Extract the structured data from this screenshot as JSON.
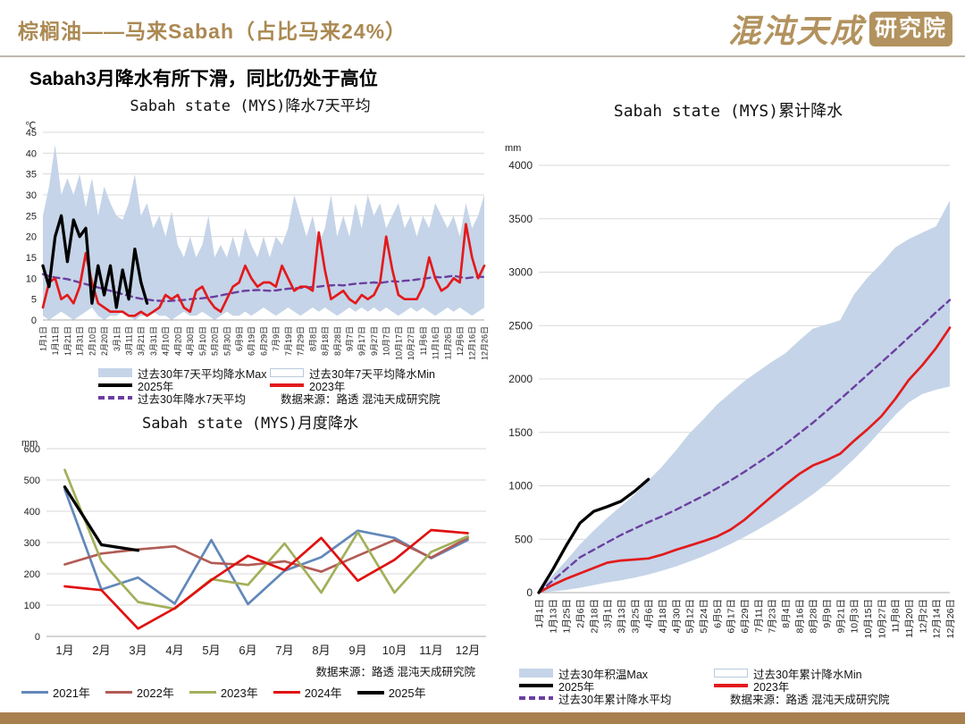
{
  "header": {
    "title": "棕榈油——马来Sabah（占比马来24%）",
    "logo_script": "混沌天成",
    "logo_seal": "研究院"
  },
  "subtitle": "Sabah3月降水有所下滑，同比仍处于高位",
  "colors": {
    "accent_gold": "#ab8952",
    "footer_bar": "#a87f4f",
    "band_fill": "#c5d4e8",
    "band_min_border": "#b9cbdf",
    "grid": "#d9d9d9",
    "black_2025": "#000000",
    "red_2023": "#e31a1c",
    "purple_avg": "#6b3fa0",
    "blue_2021": "#6288ba",
    "maroon_2022": "#b25b55",
    "olive_2023": "#a2b05a",
    "red_2024": "#e01111"
  },
  "chart_data": [
    {
      "type": "area",
      "title": "Sabah state (MYS)降水7天平均",
      "unit": "℃",
      "ylim": [
        0,
        45
      ],
      "ytick_step": 5,
      "x_count": 73,
      "points_per_tick": 2,
      "x_tick_labels": [
        "1月1日",
        "1月11日",
        "1月21日",
        "1月31日",
        "2月10日",
        "2月20日",
        "3月1日",
        "3月11日",
        "3月21日",
        "3月31日",
        "4月10日",
        "4月20日",
        "4月30日",
        "5月10日",
        "5月20日",
        "5月30日",
        "6月9日",
        "6月19日",
        "6月29日",
        "7月9日",
        "7月19日",
        "7月29日",
        "8月8日",
        "8月18日",
        "8月28日",
        "9月7日",
        "9月17日",
        "9月27日",
        "10月7日",
        "10月17日",
        "10月27日",
        "11月6日",
        "11月16日",
        "11月26日",
        "12月6日",
        "12月16日",
        "12月26日"
      ],
      "band": {
        "name_max": "过去30年7天平均降水Max",
        "name_min": "过去30年7天平均降水Min",
        "upper": [
          25,
          32,
          42,
          30,
          34,
          30,
          35,
          27,
          34,
          25,
          32,
          28,
          25,
          24,
          28,
          35,
          25,
          28,
          22,
          25,
          20,
          26,
          18,
          15,
          20,
          15,
          18,
          25,
          15,
          18,
          15,
          20,
          15,
          22,
          18,
          15,
          20,
          15,
          20,
          18,
          22,
          30,
          25,
          20,
          25,
          18,
          22,
          30,
          20,
          25,
          20,
          28,
          22,
          30,
          25,
          28,
          22,
          25,
          28,
          22,
          25,
          20,
          25,
          22,
          28,
          25,
          22,
          25,
          20,
          28,
          22,
          25,
          30
        ],
        "lower": [
          1,
          0,
          1,
          2,
          1,
          0,
          1,
          2,
          3,
          1,
          0,
          1,
          1,
          2,
          1,
          0,
          1,
          1,
          2,
          1,
          1,
          0,
          1,
          2,
          1,
          1,
          2,
          1,
          0,
          1,
          2,
          1,
          1,
          2,
          1,
          2,
          3,
          2,
          1,
          2,
          3,
          2,
          1,
          2,
          3,
          2,
          3,
          2,
          1,
          2,
          3,
          2,
          3,
          2,
          3,
          2,
          3,
          2,
          1,
          2,
          3,
          2,
          3,
          2,
          1,
          2,
          3,
          2,
          3,
          2,
          1,
          2,
          3
        ]
      },
      "series": [
        {
          "name": "2025年",
          "color_key": "black_2025",
          "values": [
            13,
            8,
            20,
            25,
            14,
            24,
            20,
            22,
            4,
            13,
            6,
            13,
            3,
            12,
            5,
            17,
            9,
            4
          ]
        },
        {
          "name": "2023年",
          "color_key": "red_2023",
          "values": [
            3,
            9,
            10,
            5,
            6,
            4,
            8,
            16,
            9,
            4,
            3,
            2,
            2,
            2,
            1,
            1,
            2,
            1,
            2,
            3,
            6,
            5,
            6,
            3,
            2,
            7,
            8,
            5,
            3,
            2,
            5,
            8,
            9,
            13,
            10,
            8,
            9,
            9,
            8,
            13,
            10,
            7,
            8,
            8,
            7,
            21,
            12,
            5,
            6,
            7,
            5,
            4,
            6,
            5,
            6,
            9,
            20,
            12,
            6,
            5,
            5,
            5,
            8,
            15,
            10,
            7,
            8,
            10,
            9,
            23,
            15,
            10,
            13
          ]
        },
        {
          "name": "过去30年降水7天平均",
          "color_key": "purple_avg",
          "dash": true,
          "values": [
            11,
            10.5,
            10.2,
            10,
            9.8,
            9.4,
            9,
            8.6,
            8.2,
            7.8,
            7.4,
            7,
            6.6,
            6.2,
            5.8,
            5.4,
            5.1,
            4.9,
            4.7,
            4.6,
            4.5,
            4.6,
            4.7,
            4.8,
            5,
            5.1,
            5.2,
            5.4,
            5.6,
            5.9,
            6.2,
            6.5,
            6.8,
            7,
            7.1,
            7.2,
            7.1,
            7,
            7.1,
            7.3,
            7.5,
            7.6,
            7.7,
            7.8,
            7.9,
            8,
            8.2,
            8.3,
            8.4,
            8.3,
            8.5,
            8.7,
            8.8,
            8.9,
            9,
            8.9,
            9.1,
            9.3,
            9.2,
            9.4,
            9.5,
            9.7,
            9.9,
            10.1,
            10.3,
            10.2,
            10.4,
            10.6,
            10.3,
            10,
            10.2,
            10.4,
            10.3
          ]
        }
      ],
      "source": "数据来源：路透  混沌天成研究院"
    },
    {
      "type": "line",
      "title": "Sabah state (MYS)月度降水",
      "unit": "mm",
      "ylim": [
        0,
        600
      ],
      "ytick_step": 100,
      "categories": [
        "1月",
        "2月",
        "3月",
        "4月",
        "5月",
        "6月",
        "7月",
        "8月",
        "9月",
        "10月",
        "11月",
        "12月"
      ],
      "series": [
        {
          "name": "2021年",
          "color_key": "blue_2021",
          "values": [
            470,
            150,
            188,
            105,
            308,
            103,
            210,
            253,
            338,
            315,
            250,
            308
          ]
        },
        {
          "name": "2022年",
          "color_key": "maroon_2022",
          "values": [
            230,
            265,
            278,
            288,
            235,
            228,
            240,
            207,
            258,
            308,
            252,
            315
          ]
        },
        {
          "name": "2023年",
          "color_key": "olive_2023",
          "values": [
            532,
            240,
            110,
            88,
            183,
            165,
            297,
            140,
            333,
            140,
            270,
            320
          ]
        },
        {
          "name": "2024年",
          "color_key": "red_2024",
          "values": [
            160,
            148,
            25,
            90,
            180,
            258,
            212,
            315,
            178,
            245,
            340,
            330
          ]
        },
        {
          "name": "2025年",
          "color_key": "black_2025",
          "values": [
            478,
            293,
            275,
            null,
            null,
            null,
            null,
            null,
            null,
            null,
            null,
            null
          ]
        }
      ],
      "source": "数据来源：路透  混沌天成研究院"
    },
    {
      "type": "area",
      "title": "Sabah state (MYS)累计降水",
      "unit": "mm",
      "ylim": [
        0,
        4000
      ],
      "ytick_step": 500,
      "x_count": 31,
      "points_per_tick": 1,
      "x_tick_labels": [
        "1月1日",
        "1月13日",
        "1月25日",
        "2月6日",
        "2月18日",
        "3月1日",
        "3月13日",
        "3月25日",
        "4月6日",
        "4月18日",
        "4月30日",
        "5月12日",
        "5月24日",
        "6月5日",
        "6月17日",
        "6月29日",
        "7月11日",
        "7月23日",
        "8月4日",
        "8月16日",
        "8月28日",
        "9月9日",
        "9月21日",
        "10月3日",
        "10月15日",
        "10月27日",
        "11月8日",
        "11月20日",
        "12月2日",
        "12月14日",
        "12月26日"
      ],
      "band": {
        "name_max": "过去30年积温Max",
        "name_min": "过去30年累计降水Min",
        "upper": [
          0,
          160,
          300,
          450,
          580,
          700,
          810,
          920,
          1050,
          1180,
          1330,
          1490,
          1620,
          1760,
          1870,
          1980,
          2070,
          2160,
          2240,
          2360,
          2470,
          2510,
          2550,
          2790,
          2950,
          3080,
          3230,
          3310,
          3370,
          3430,
          3670
        ],
        "lower": [
          0,
          10,
          25,
          45,
          70,
          95,
          115,
          140,
          170,
          205,
          245,
          290,
          340,
          395,
          455,
          520,
          590,
          665,
          745,
          830,
          920,
          1020,
          1130,
          1250,
          1380,
          1520,
          1660,
          1780,
          1860,
          1900,
          1930
        ]
      },
      "series": [
        {
          "name": "2025年",
          "color_key": "black_2025",
          "values": [
            0,
            210,
            440,
            650,
            760,
            805,
            855,
            950,
            1060
          ]
        },
        {
          "name": "2023年",
          "color_key": "red_2023",
          "values": [
            0,
            70,
            130,
            180,
            230,
            280,
            300,
            310,
            320,
            355,
            400,
            440,
            480,
            525,
            590,
            680,
            790,
            900,
            1010,
            1110,
            1190,
            1240,
            1300,
            1420,
            1530,
            1650,
            1810,
            1990,
            2130,
            2290,
            2480
          ]
        },
        {
          "name": "过去30年累计降水平均",
          "color_key": "purple_avg",
          "dash": true,
          "values": [
            0,
            110,
            220,
            330,
            400,
            470,
            540,
            600,
            660,
            715,
            775,
            840,
            905,
            975,
            1050,
            1130,
            1215,
            1300,
            1390,
            1490,
            1590,
            1700,
            1810,
            1925,
            2040,
            2155,
            2270,
            2390,
            2505,
            2625,
            2740
          ]
        }
      ],
      "source": "数据来源：路透  混沌天成研究院"
    }
  ]
}
